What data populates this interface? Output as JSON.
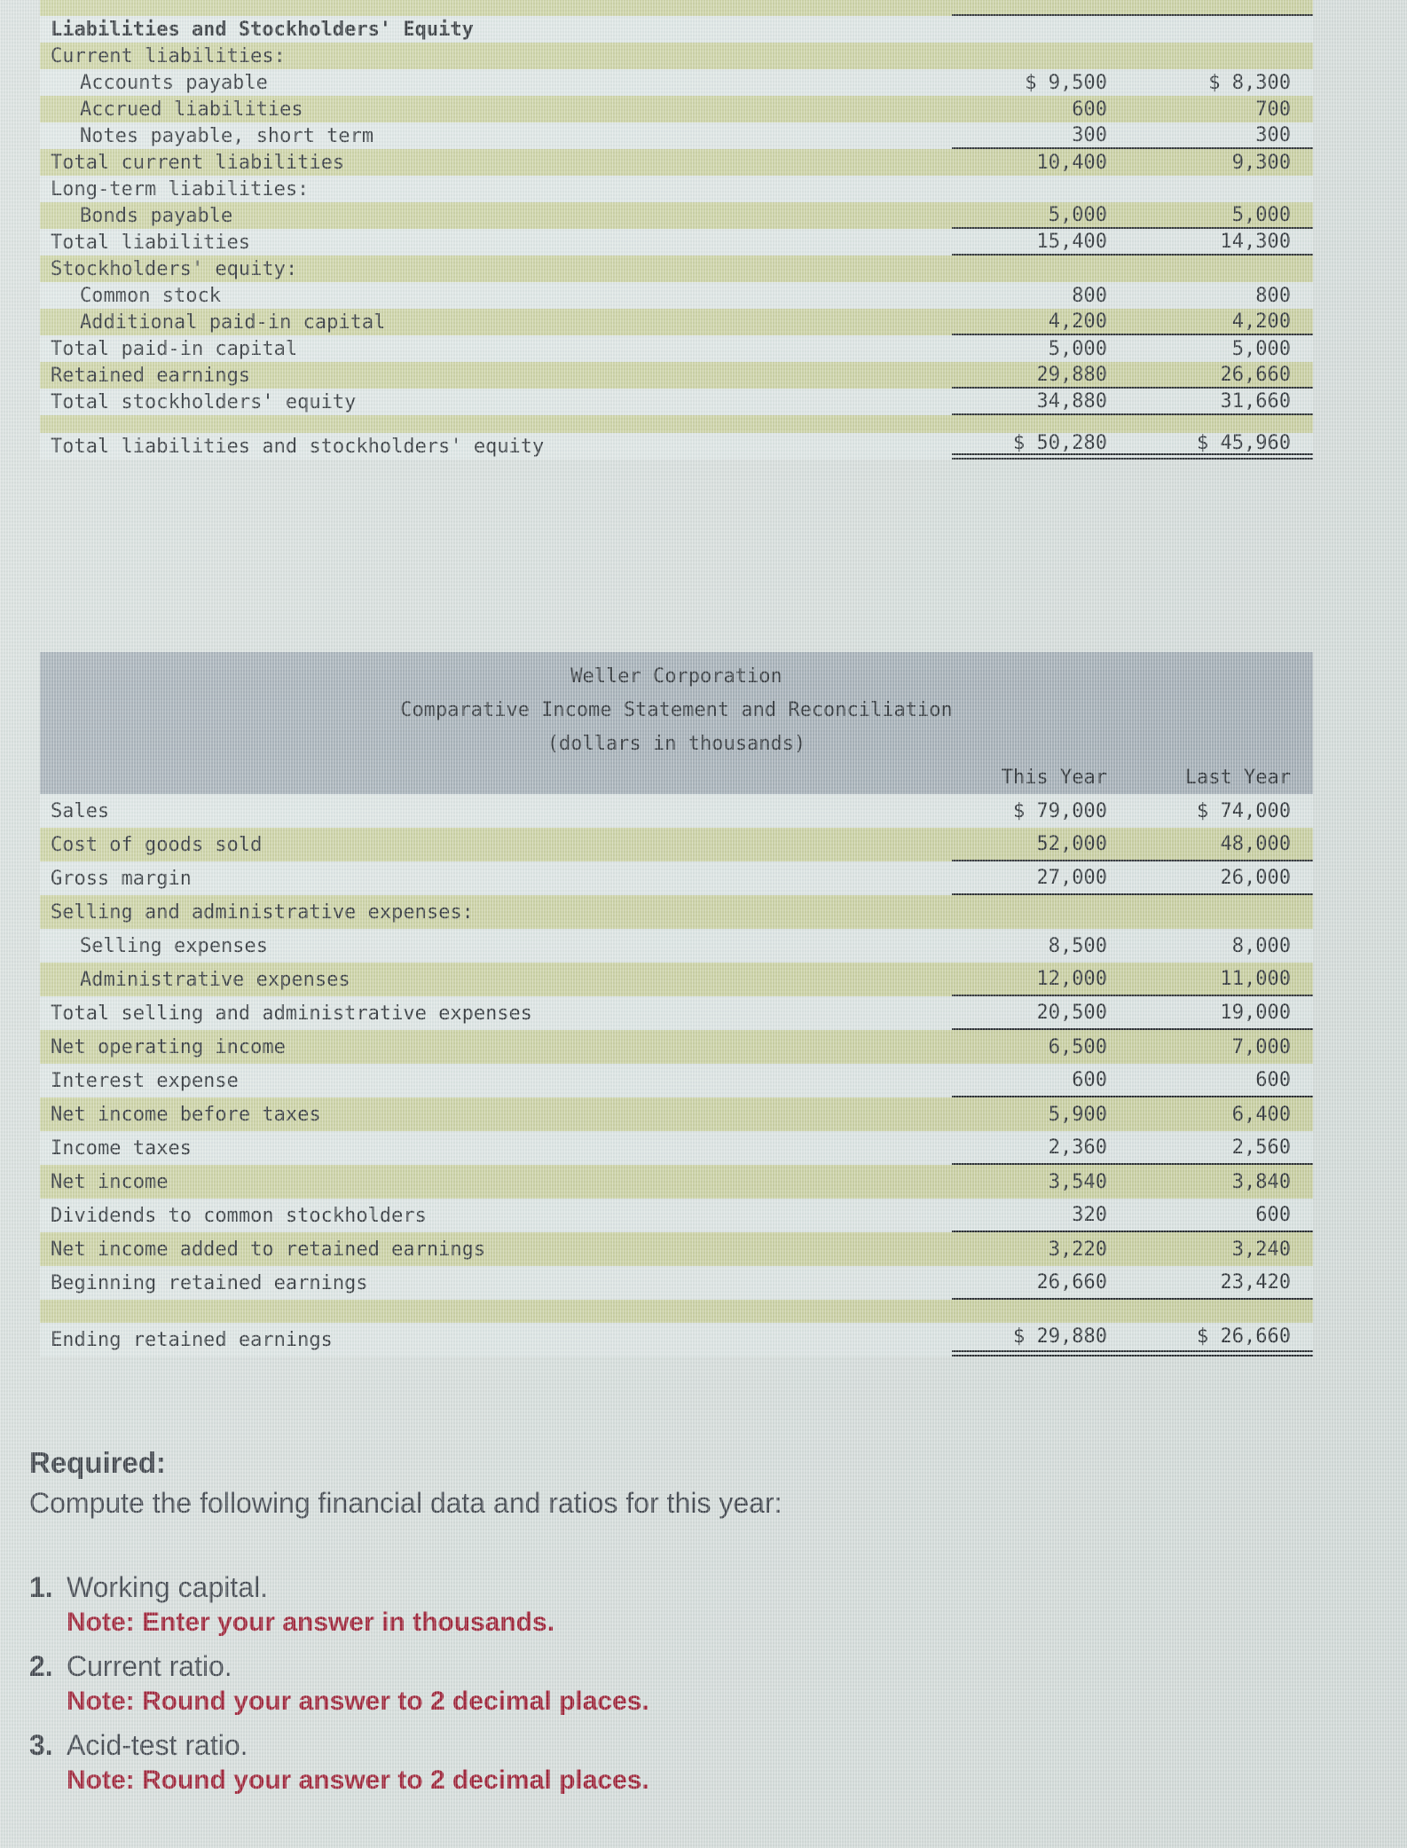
{
  "colors": {
    "page_bg": "#d6dedc",
    "row_band": "#cad1a2",
    "row_light": "#dce5e4",
    "header_gray": "#a4afb7",
    "text_dark": "#2b3136",
    "note_red": "#9c1c32",
    "rule_color": "#272c30"
  },
  "balance_sheet": {
    "rows": [
      {
        "label": "",
        "spacer": true,
        "cutstrip": true,
        "band": true,
        "rule": "single",
        "this_year": "",
        "last_year": ""
      },
      {
        "label": "Liabilities and Stockholders' Equity",
        "bold": true
      },
      {
        "label": "Current liabilities:",
        "band": true
      },
      {
        "label": "Accounts payable",
        "indent": 1,
        "this_year": "$ 9,500",
        "last_year": "$ 8,300"
      },
      {
        "label": "Accrued liabilities",
        "indent": 1,
        "band": true,
        "this_year": "600",
        "last_year": "700"
      },
      {
        "label": "Notes payable, short term",
        "indent": 1,
        "this_year": "300",
        "last_year": "300",
        "rule": "single"
      },
      {
        "label": "Total current liabilities",
        "band": true,
        "this_year": "10,400",
        "last_year": "9,300"
      },
      {
        "label": "Long-term liabilities:"
      },
      {
        "label": "Bonds payable",
        "indent": 1,
        "band": true,
        "this_year": "5,000",
        "last_year": "5,000",
        "rule": "single"
      },
      {
        "label": "Total liabilities",
        "this_year": "15,400",
        "last_year": "14,300",
        "rule": "single"
      },
      {
        "label": "Stockholders' equity:",
        "band": true
      },
      {
        "label": "Common stock",
        "indent": 1,
        "this_year": "800",
        "last_year": "800"
      },
      {
        "label": "Additional paid-in capital",
        "indent": 1,
        "band": true,
        "this_year": "4,200",
        "last_year": "4,200",
        "rule": "single"
      },
      {
        "label": "Total paid-in capital",
        "this_year": "5,000",
        "last_year": "5,000"
      },
      {
        "label": "Retained earnings",
        "band": true,
        "this_year": "29,880",
        "last_year": "26,660",
        "rule": "single"
      },
      {
        "label": "Total stockholders' equity",
        "this_year": "34,880",
        "last_year": "31,660",
        "rule": "single"
      },
      {
        "label": "",
        "spacer": true,
        "band": true
      },
      {
        "label": "Total liabilities and stockholders' equity",
        "this_year": "$ 50,280",
        "last_year": "$ 45,960",
        "rule": "double"
      }
    ]
  },
  "income_statement": {
    "header_lines": [
      "Weller Corporation",
      "Comparative Income Statement and Reconciliation",
      "(dollars in thousands)"
    ],
    "columns": {
      "this_year": "This Year",
      "last_year": "Last Year"
    },
    "rows": [
      {
        "label": "Sales",
        "this_year": "$ 79,000",
        "last_year": "$ 74,000"
      },
      {
        "label": "Cost of goods sold",
        "band": true,
        "this_year": "52,000",
        "last_year": "48,000",
        "rule": "single"
      },
      {
        "label": "Gross margin",
        "this_year": "27,000",
        "last_year": "26,000",
        "rule": "single"
      },
      {
        "label": "Selling and administrative expenses:",
        "band": true
      },
      {
        "label": "Selling expenses",
        "indent": 1,
        "this_year": "8,500",
        "last_year": "8,000"
      },
      {
        "label": "Administrative expenses",
        "indent": 1,
        "band": true,
        "this_year": "12,000",
        "last_year": "11,000",
        "rule": "single"
      },
      {
        "label": "Total selling and administrative expenses",
        "this_year": "20,500",
        "last_year": "19,000",
        "rule": "single"
      },
      {
        "label": "Net operating income",
        "band": true,
        "this_year": "6,500",
        "last_year": "7,000"
      },
      {
        "label": "Interest expense",
        "this_year": "600",
        "last_year": "600",
        "rule": "single"
      },
      {
        "label": "Net income before taxes",
        "band": true,
        "this_year": "5,900",
        "last_year": "6,400"
      },
      {
        "label": "Income taxes",
        "this_year": "2,360",
        "last_year": "2,560",
        "rule": "single"
      },
      {
        "label": "Net income",
        "band": true,
        "this_year": "3,540",
        "last_year": "3,840"
      },
      {
        "label": "Dividends to common stockholders",
        "this_year": "320",
        "last_year": "600",
        "rule": "single"
      },
      {
        "label": "Net income added to retained earnings",
        "band": true,
        "this_year": "3,220",
        "last_year": "3,240"
      },
      {
        "label": "Beginning retained earnings",
        "this_year": "26,660",
        "last_year": "23,420",
        "rule": "single"
      },
      {
        "label": "",
        "spacer": true,
        "band": true
      },
      {
        "label": "Ending retained earnings",
        "this_year": "$ 29,880",
        "last_year": "$ 26,660",
        "rule": "double"
      }
    ]
  },
  "required": {
    "heading": "Required:",
    "intro": "Compute the following financial data and ratios for this year:",
    "items": [
      {
        "number": "1.",
        "text": "Working capital.",
        "note": "Note: Enter your answer in thousands."
      },
      {
        "number": "2.",
        "text": "Current ratio.",
        "note": "Note: Round your answer to 2 decimal places."
      },
      {
        "number": "3.",
        "text": "Acid-test ratio.",
        "note": "Note: Round your answer to 2 decimal places."
      }
    ]
  }
}
